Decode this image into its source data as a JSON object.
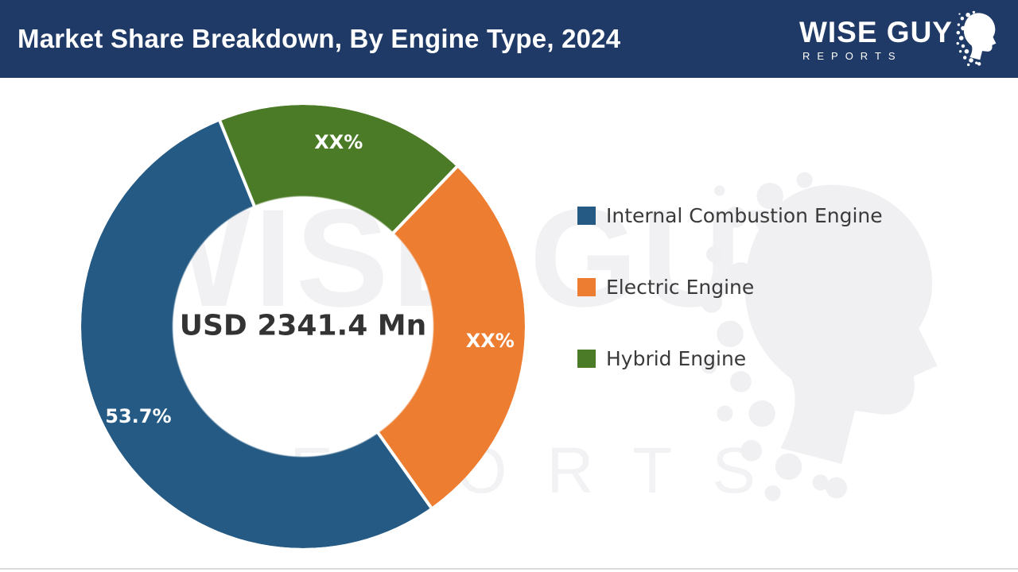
{
  "header": {
    "title": "Market Share Breakdown, By Engine Type, 2024",
    "brand": {
      "name_top": "WISE GUY",
      "name_bottom": "REPORTS"
    }
  },
  "watermark": {
    "text_top": "WISE GUY",
    "text_bottom": "REPORTS"
  },
  "chart_data": {
    "type": "pie",
    "subtype": "donut",
    "title": "Market Share Breakdown, By Engine Type, 2024",
    "center_label": "USD 2341.4 Mn",
    "start_angle_deg": -22,
    "slices": [
      {
        "name": "Hybrid Engine",
        "value_pct": 18.3,
        "displayed_label": "XX%",
        "color": "#4C7B28"
      },
      {
        "name": "Electric Engine",
        "value_pct": 28.0,
        "displayed_label": "XX%",
        "color": "#ED7D31"
      },
      {
        "name": "Internal Combustion Engine",
        "value_pct": 53.7,
        "displayed_label": "53.7%",
        "color": "#245A84"
      }
    ],
    "legend_position": "right",
    "label_color": "#ffffff",
    "center_label_color": "#333333"
  },
  "legend": {
    "items": [
      {
        "label": "Internal Combustion Engine",
        "color": "#245A84"
      },
      {
        "label": "Electric Engine",
        "color": "#ED7D31"
      },
      {
        "label": "Hybrid Engine",
        "color": "#4C7B28"
      }
    ]
  },
  "theme": {
    "header_bg": "#1F3A67",
    "rule_color": "#D9D9D9"
  }
}
